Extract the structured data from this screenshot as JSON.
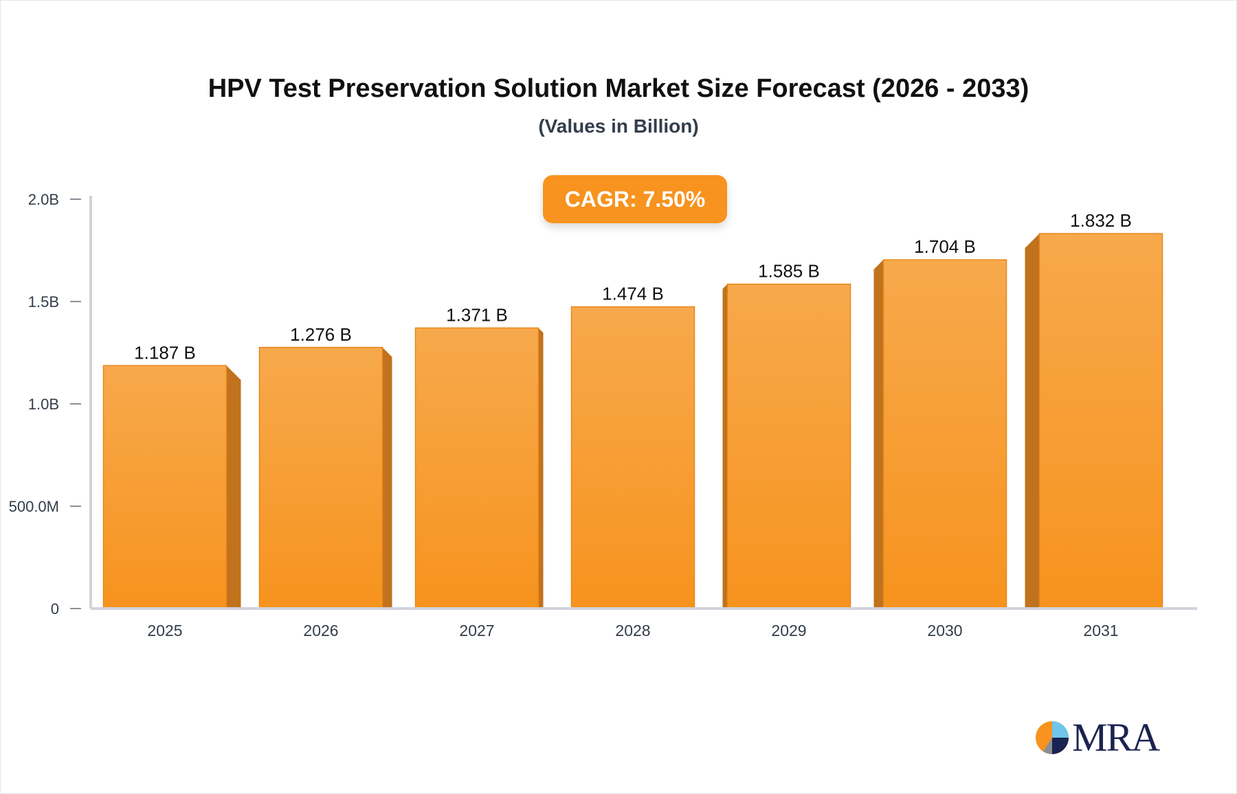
{
  "chart_data": {
    "type": "bar",
    "title": "HPV Test Preservation Solution Market Size Forecast (2026 - 2033)",
    "subtitle": "(Values in Billion)",
    "categories": [
      "2025",
      "2026",
      "2027",
      "2028",
      "2029",
      "2030",
      "2031"
    ],
    "values": [
      1.187,
      1.276,
      1.371,
      1.474,
      1.585,
      1.704,
      1.832
    ],
    "data_labels": [
      "1.187 B",
      "1.276 B",
      "1.371 B",
      "1.474 B",
      "1.585 B",
      "1.704 B",
      "1.832 B"
    ],
    "ylim": [
      0,
      2.0
    ],
    "yticks": [
      0,
      0.5,
      1.0,
      1.5,
      2.0
    ],
    "ytick_labels": [
      "0",
      "500.0M",
      "1.0B",
      "1.5B",
      "2.0B"
    ],
    "xlabel": "",
    "ylabel": "",
    "grid": false,
    "bar_color": "#f7931e",
    "annotation": "CAGR: 7.50%"
  },
  "logo": {
    "text": "MRA"
  }
}
